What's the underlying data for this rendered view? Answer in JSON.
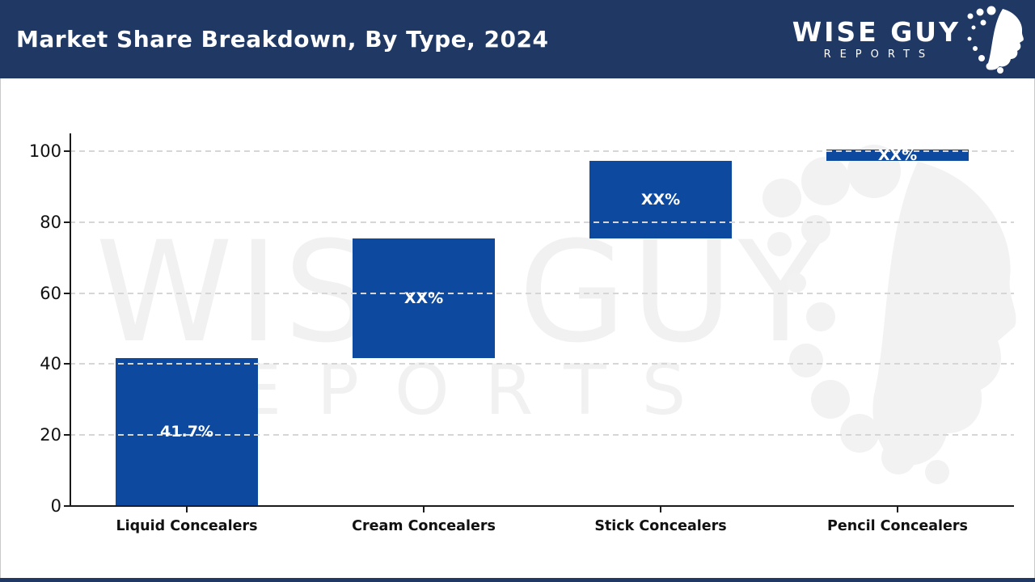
{
  "header": {
    "title": "Market Share Breakdown, By Type, 2024",
    "logo": {
      "line1": "WISE GUY",
      "line2": "REPORTS"
    }
  },
  "watermark": {
    "line1": "WISE GUY",
    "line2": "REPORTS"
  },
  "colors": {
    "header_bg": "#203864",
    "bar": "#0d4a9f",
    "bar_label": "#ffffff",
    "gridline": "#d6d6d6",
    "axis": "#1a1a1a",
    "watermark": "#f1f1f1"
  },
  "chart_data": {
    "type": "bar",
    "subtype": "stepped-waterfall",
    "title": "Market Share Breakdown, By Type, 2024",
    "categories": [
      "Liquid Concealers",
      "Cream Concealers",
      "Stick Concealers",
      "Pencil Concealers"
    ],
    "segments": [
      {
        "category": "Liquid Concealers",
        "label": "41.7%",
        "start": 0,
        "end": 41.7,
        "value": 41.7
      },
      {
        "category": "Cream Concealers",
        "label": "XX%",
        "start": 41.7,
        "end": 75.3,
        "value": null
      },
      {
        "category": "Stick Concealers",
        "label": "XX%",
        "start": 75.3,
        "end": 97.3,
        "value": null
      },
      {
        "category": "Pencil Concealers",
        "label": "XX%",
        "start": 97.3,
        "end": 100.4,
        "value": null
      }
    ],
    "ylim": [
      0,
      100
    ],
    "yticks": [
      0,
      20,
      40,
      60,
      80,
      100
    ],
    "xlabel": "",
    "ylabel": "",
    "grid": "horizontal-dashed-over-bars",
    "legend": "none"
  }
}
